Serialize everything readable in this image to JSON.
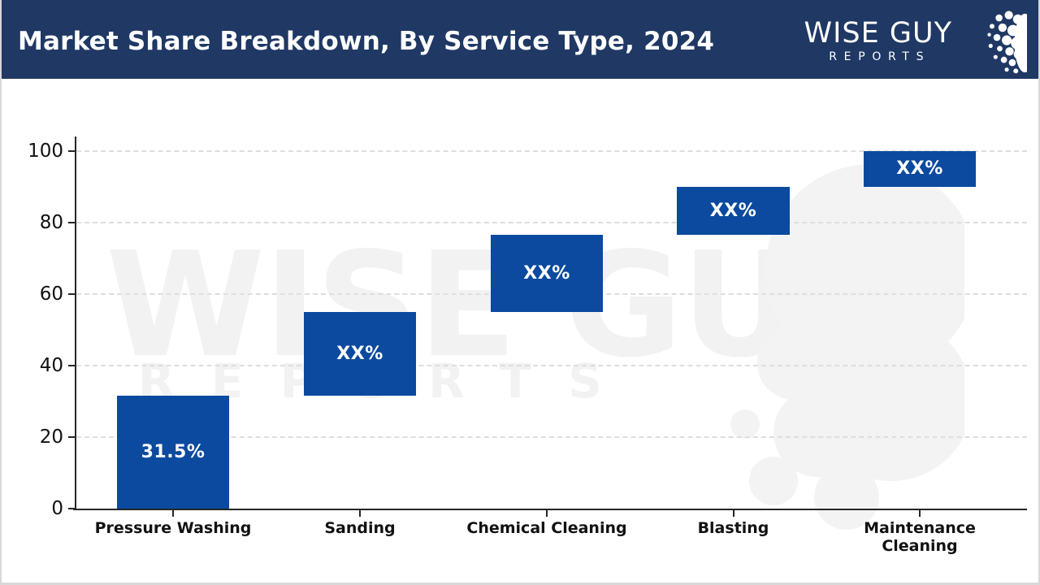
{
  "header": {
    "title": "Market Share Breakdown, By Service Type, 2024",
    "logo": {
      "line1": "WISE GUY",
      "line2": "REPORTS"
    }
  },
  "watermark": {
    "line1": "WISE GUY",
    "line2": "REPORTS"
  },
  "colors": {
    "header_background": "#1f3864",
    "bar_blue": "#0b4a9f",
    "bar_label_white": "#ffffff",
    "axis_black": "#262626",
    "gridline_gray": "#dedede",
    "watermark_gray": "#f2f2f2"
  },
  "chart_data": {
    "type": "bar",
    "subtype": "waterfall",
    "title": "Market Share Breakdown, By Service Type, 2024",
    "categories": [
      "Pressure Washing",
      "Sanding",
      "Chemical Cleaning",
      "Blasting",
      "Maintenance Cleaning"
    ],
    "bars": [
      {
        "category": "Pressure Washing",
        "start": 0,
        "end": 31.5,
        "label": "31.5%"
      },
      {
        "category": "Sanding",
        "start": 31.5,
        "end": 55,
        "label": "XX%"
      },
      {
        "category": "Chemical Cleaning",
        "start": 55,
        "end": 76.5,
        "label": "XX%"
      },
      {
        "category": "Blasting",
        "start": 76.5,
        "end": 90,
        "label": "XX%"
      },
      {
        "category": "Maintenance Cleaning",
        "start": 90,
        "end": 100,
        "label": "XX%"
      }
    ],
    "xlabel": "",
    "ylabel": "",
    "ylim": [
      0,
      104
    ],
    "yticks": [
      0,
      20,
      40,
      60,
      80,
      100
    ],
    "grid": "horizontal-dashed",
    "legend": "none",
    "bar_color": "#0b4a9f",
    "bar_label_color": "#ffffff"
  }
}
